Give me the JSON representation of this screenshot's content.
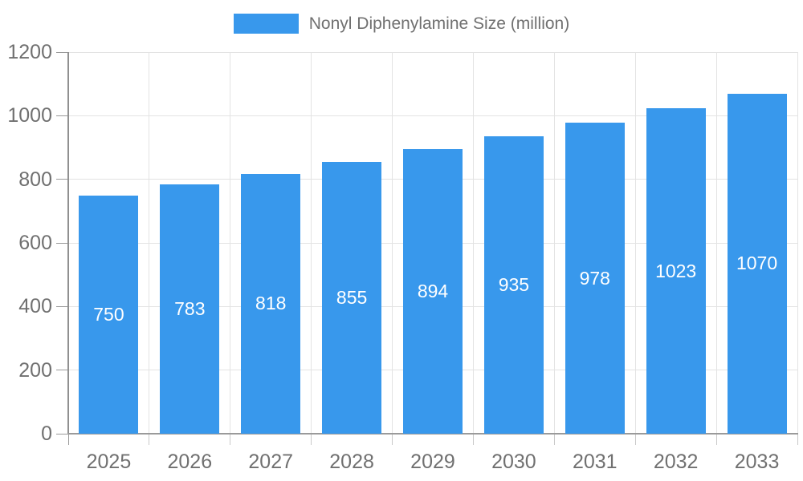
{
  "page": {
    "background_color": "#ffffff"
  },
  "legend": {
    "label": "Nonyl Diphenylamine Size (million)",
    "swatch_color": "#3898ec",
    "position": "top"
  },
  "chart_data": {
    "type": "bar",
    "title": "Nonyl Diphenylamine Size (million)",
    "categories": [
      "2025",
      "2026",
      "2027",
      "2028",
      "2029",
      "2030",
      "2031",
      "2032",
      "2033"
    ],
    "values": [
      750,
      783,
      818,
      855,
      894,
      935,
      978,
      1023,
      1070
    ],
    "xlabel": "",
    "ylabel": "",
    "ylim": [
      0,
      1200
    ],
    "yticks": [
      0,
      200,
      400,
      600,
      800,
      1000,
      1200
    ],
    "grid": true,
    "legend_position": "top",
    "bar_color": "#3898ec",
    "bar_label_color": "#ffffff",
    "axis_text_color": "#707070",
    "gridline_color": "#e3e3e3",
    "axis_line_color": "#9a9a9a"
  }
}
